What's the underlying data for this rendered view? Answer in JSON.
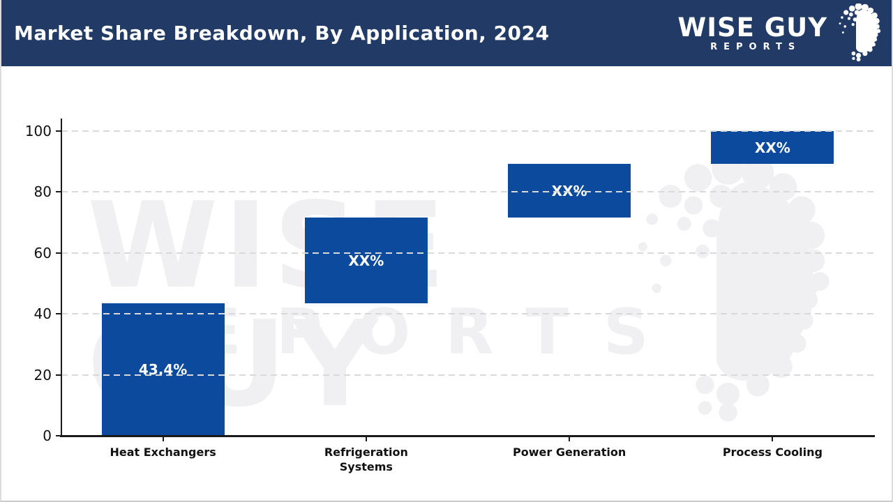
{
  "header": {
    "title": "Market Share Breakdown, By Application, 2024",
    "logo": {
      "line1": "WISE GUY",
      "line2": "REPORTS"
    }
  },
  "watermark": {
    "line1": "WISE GUY",
    "line2": "REPORTS"
  },
  "chart_data": {
    "type": "bar",
    "subtype": "waterfall",
    "title": "Market Share Breakdown, By Application, 2024",
    "categories": [
      "Heat Exchangers",
      "Refrigeration\nSystems",
      "Power Generation",
      "Process Cooling"
    ],
    "series": [
      {
        "name": "Market Share",
        "segments": [
          {
            "category": "Heat Exchangers",
            "start": 0,
            "end": 43.4,
            "label": "43.4%"
          },
          {
            "category": "Refrigeration Systems",
            "start": 43.4,
            "end": 71.6,
            "label": "XX%"
          },
          {
            "category": "Power Generation",
            "start": 71.6,
            "end": 89.2,
            "label": "XX%"
          },
          {
            "category": "Process Cooling",
            "start": 89.2,
            "end": 100,
            "label": "XX%"
          }
        ]
      }
    ],
    "yticks": [
      0,
      20,
      40,
      60,
      80,
      100
    ],
    "ylim": [
      0,
      104.5
    ],
    "xlabel": "",
    "ylabel": "",
    "grid": "horizontal-dashed-over-bars",
    "legend": "none"
  },
  "colors": {
    "header_bg": "#213a66",
    "bar": "#0c4a9e",
    "bar_label": "#ffffff",
    "grid": "#d9d9d9",
    "axis": "#1a1a1a",
    "tick_label": "#111111",
    "watermark": "#f0f0f2",
    "title_text": "#ffffff"
  }
}
